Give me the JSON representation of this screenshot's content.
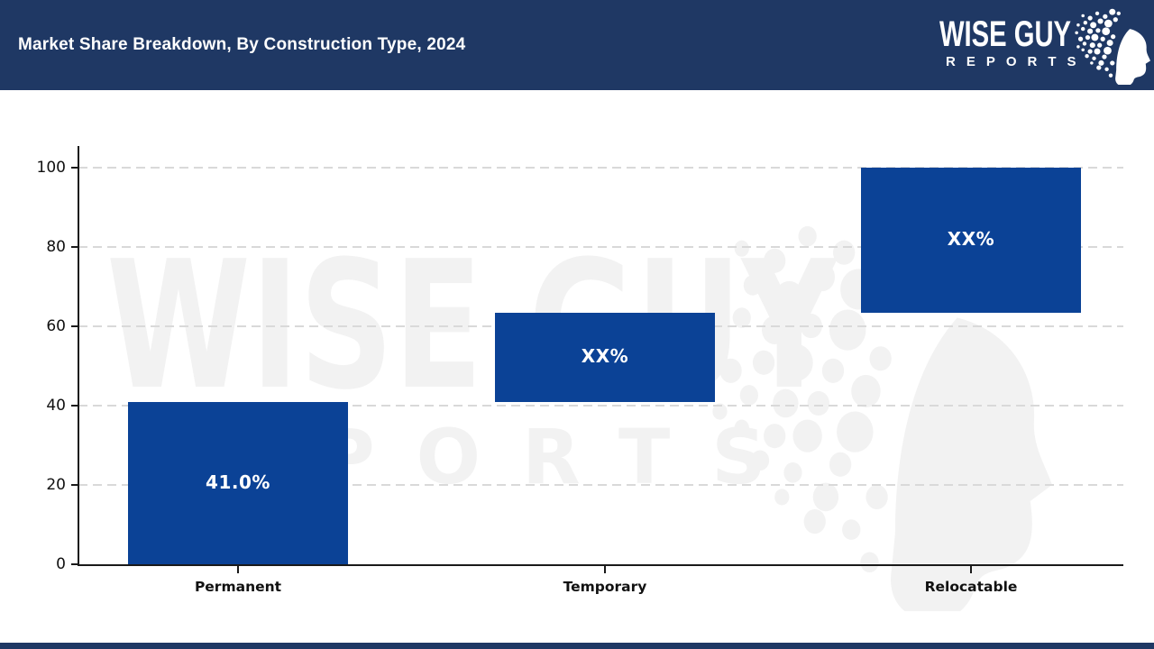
{
  "header": {
    "title": "Market Share Breakdown, By Construction Type, 2024",
    "logo": {
      "line1": "WISE GUY",
      "line2": "REPORTS",
      "face_icon": "head-profile-dots-icon"
    }
  },
  "watermark": {
    "line1": "WISE GUY",
    "line2": "REPORTS",
    "face_icon": "head-profile-dots-icon"
  },
  "chart_data": {
    "type": "bar",
    "subtype": "waterfall-stacked-segments",
    "title": "Market Share Breakdown, By Construction Type, 2024",
    "categories": [
      "Permanent",
      "Temporary",
      "Relocatable"
    ],
    "segments": [
      {
        "category": "Permanent",
        "start": 0,
        "end": 41.0,
        "label": "41.0%"
      },
      {
        "category": "Temporary",
        "start": 41.0,
        "end": 63.5,
        "label": "XX%"
      },
      {
        "category": "Relocatable",
        "start": 63.5,
        "end": 100.0,
        "label": "XX%"
      }
    ],
    "y_ticks": [
      0,
      20,
      40,
      60,
      80,
      100
    ],
    "ylim": [
      0,
      105.5
    ],
    "xlabel": "",
    "ylabel": "",
    "grid": "horizontal-dashed",
    "legend": "none",
    "bar_color": "#0b4296",
    "value_label_color": "#ffffff"
  },
  "colors": {
    "header_bg": "#1f3864",
    "footer_bg": "#1f3864",
    "title_text": "#ffffff",
    "axis": "#1a1a1a",
    "gridline": "#d9d9d9",
    "watermark": "#f2f2f2"
  }
}
